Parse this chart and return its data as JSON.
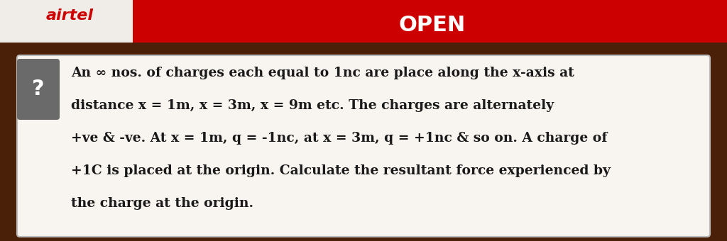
{
  "top_bar_color": "#cc0000",
  "top_bar_text": "OPEN",
  "top_bar_text_color": "#ffffff",
  "top_bar_left_text": "airtel",
  "top_bar_left_text_color": "#cc0000",
  "bg_color": "#4a2008",
  "card_bg_color": "#f8f4ef",
  "card_border_color": "#aaaaaa",
  "question_badge_color": "#6a6a6a",
  "question_badge_text": "?",
  "question_badge_text_color": "#ffffff",
  "main_text_color": "#1a1a1a",
  "main_text_fontsize": 13.5,
  "line1": "An ∞ nos. of charges each equal to 1nc are place along the x-axis at",
  "line2": "distance x = 1m, x = 3m, x = 9m etc. The charges are alternately",
  "line3": "+ve & -ve. At x = 1m, q = -1nc, at x = 3m, q = +1nc & so on. A charge of",
  "line4": "+1C is placed at the origin. Calculate the resultant force experienced by",
  "line5": "the charge at the origin.",
  "white_top_bg": "#f0ede8",
  "figsize": [
    10.24,
    3.4
  ],
  "dpi": 100
}
